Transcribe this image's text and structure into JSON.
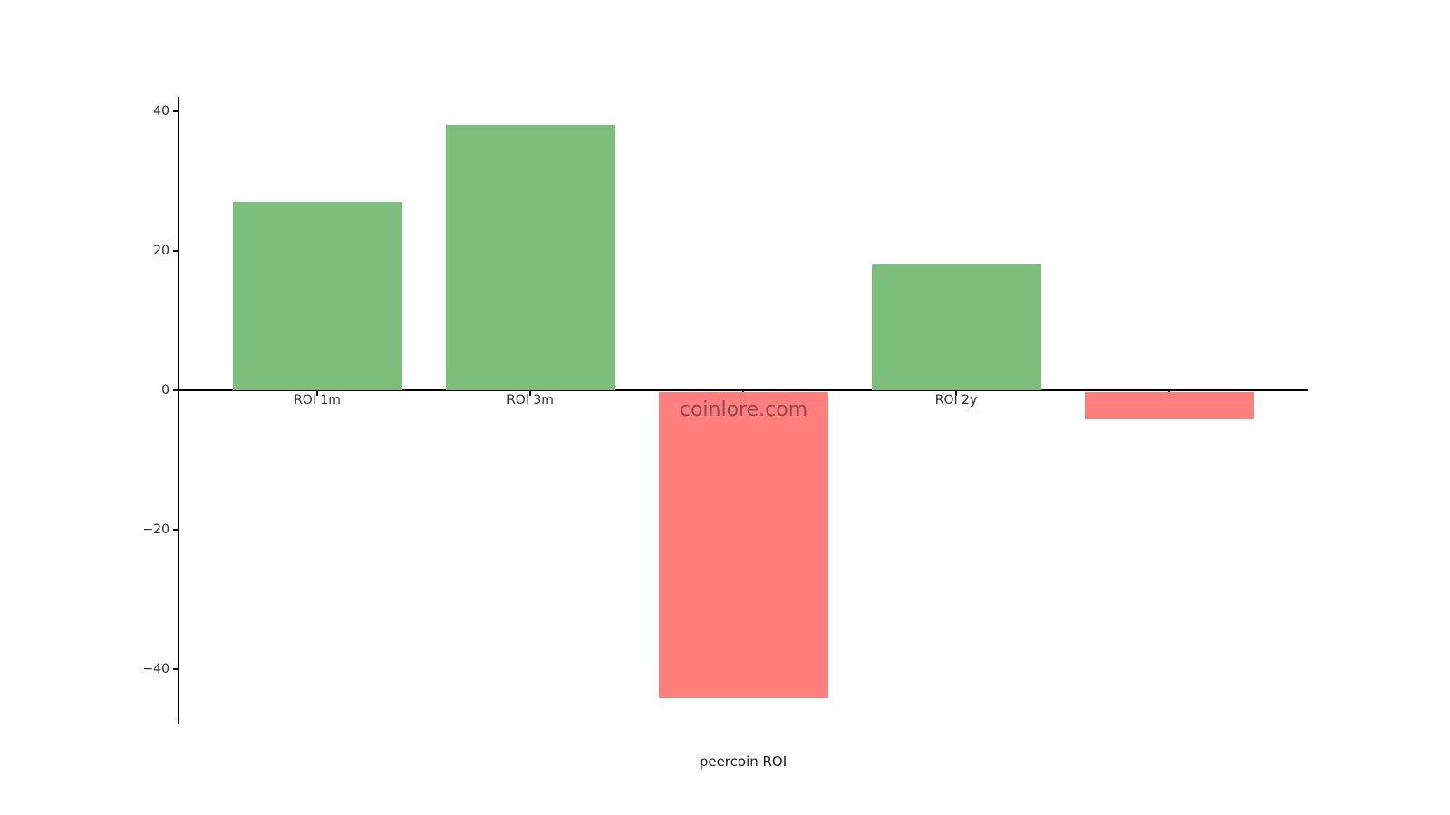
{
  "chart_data": {
    "type": "bar",
    "title": "peercoin ROI",
    "watermark": "coinlore.com",
    "categories": [
      "ROI 1m",
      "ROI 3m",
      "",
      "ROI 2y",
      ""
    ],
    "values": [
      27,
      38,
      -44,
      18,
      -4
    ],
    "yticks": [
      40,
      20,
      0,
      -20,
      -40
    ],
    "yticklabels": [
      "40",
      "20",
      "0",
      "−20",
      "−40"
    ],
    "ylim": [
      -48,
      42
    ],
    "xlabel": "",
    "ylabel": "",
    "grid": false,
    "legend": false,
    "colors": {
      "positive_bar": "#7dbe7d",
      "negative_bar": "#ff7f7f",
      "axis": "#000000",
      "tick_text": "#262626",
      "watermark_text": "#8e4b4b",
      "title_text": "#1a1a1a"
    }
  }
}
